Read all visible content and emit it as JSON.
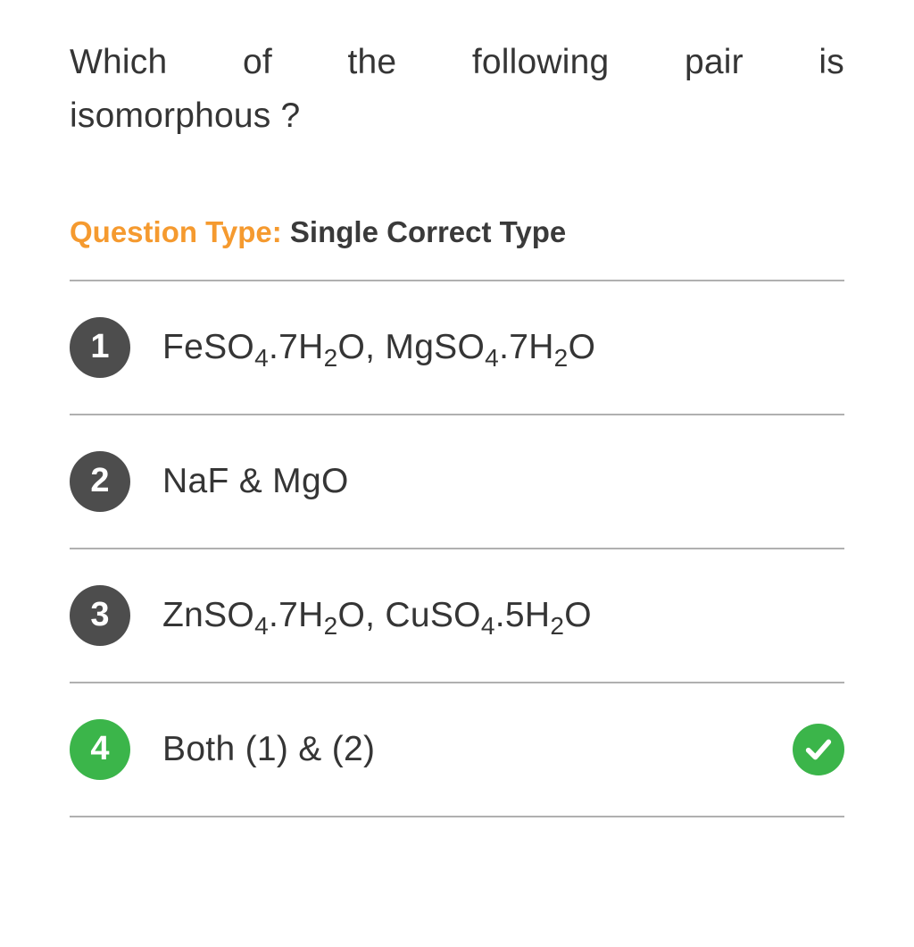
{
  "question": {
    "text_line1": "Which of the following pair is",
    "text_line2": "isomorphous ?"
  },
  "question_type": {
    "label": "Question Type:",
    "value": "Single Correct Type",
    "label_color": "#f59a2f",
    "value_color": "#3a3a3a"
  },
  "options": [
    {
      "num": "1",
      "badge_color": "#4d4d4d",
      "formula_html": "FeSO<sub>4</sub>.7H<sub>2</sub>O, MgSO<sub>4</sub>.7H<sub>2</sub>O",
      "correct": false
    },
    {
      "num": "2",
      "badge_color": "#4d4d4d",
      "formula_html": "NaF & MgO",
      "correct": false
    },
    {
      "num": "3",
      "badge_color": "#4d4d4d",
      "formula_html": "ZnSO<sub>4</sub>.7H<sub>2</sub>O, CuSO<sub>4</sub>.5H<sub>2</sub>O",
      "correct": false
    },
    {
      "num": "4",
      "badge_color": "#3bb54a",
      "formula_html": "Both (1) & (2)",
      "correct": true
    }
  ],
  "colors": {
    "divider": "#b0b0b0",
    "badge_default": "#4d4d4d",
    "badge_correct": "#3bb54a",
    "check_bg": "#3bb54a",
    "text": "#353535"
  }
}
